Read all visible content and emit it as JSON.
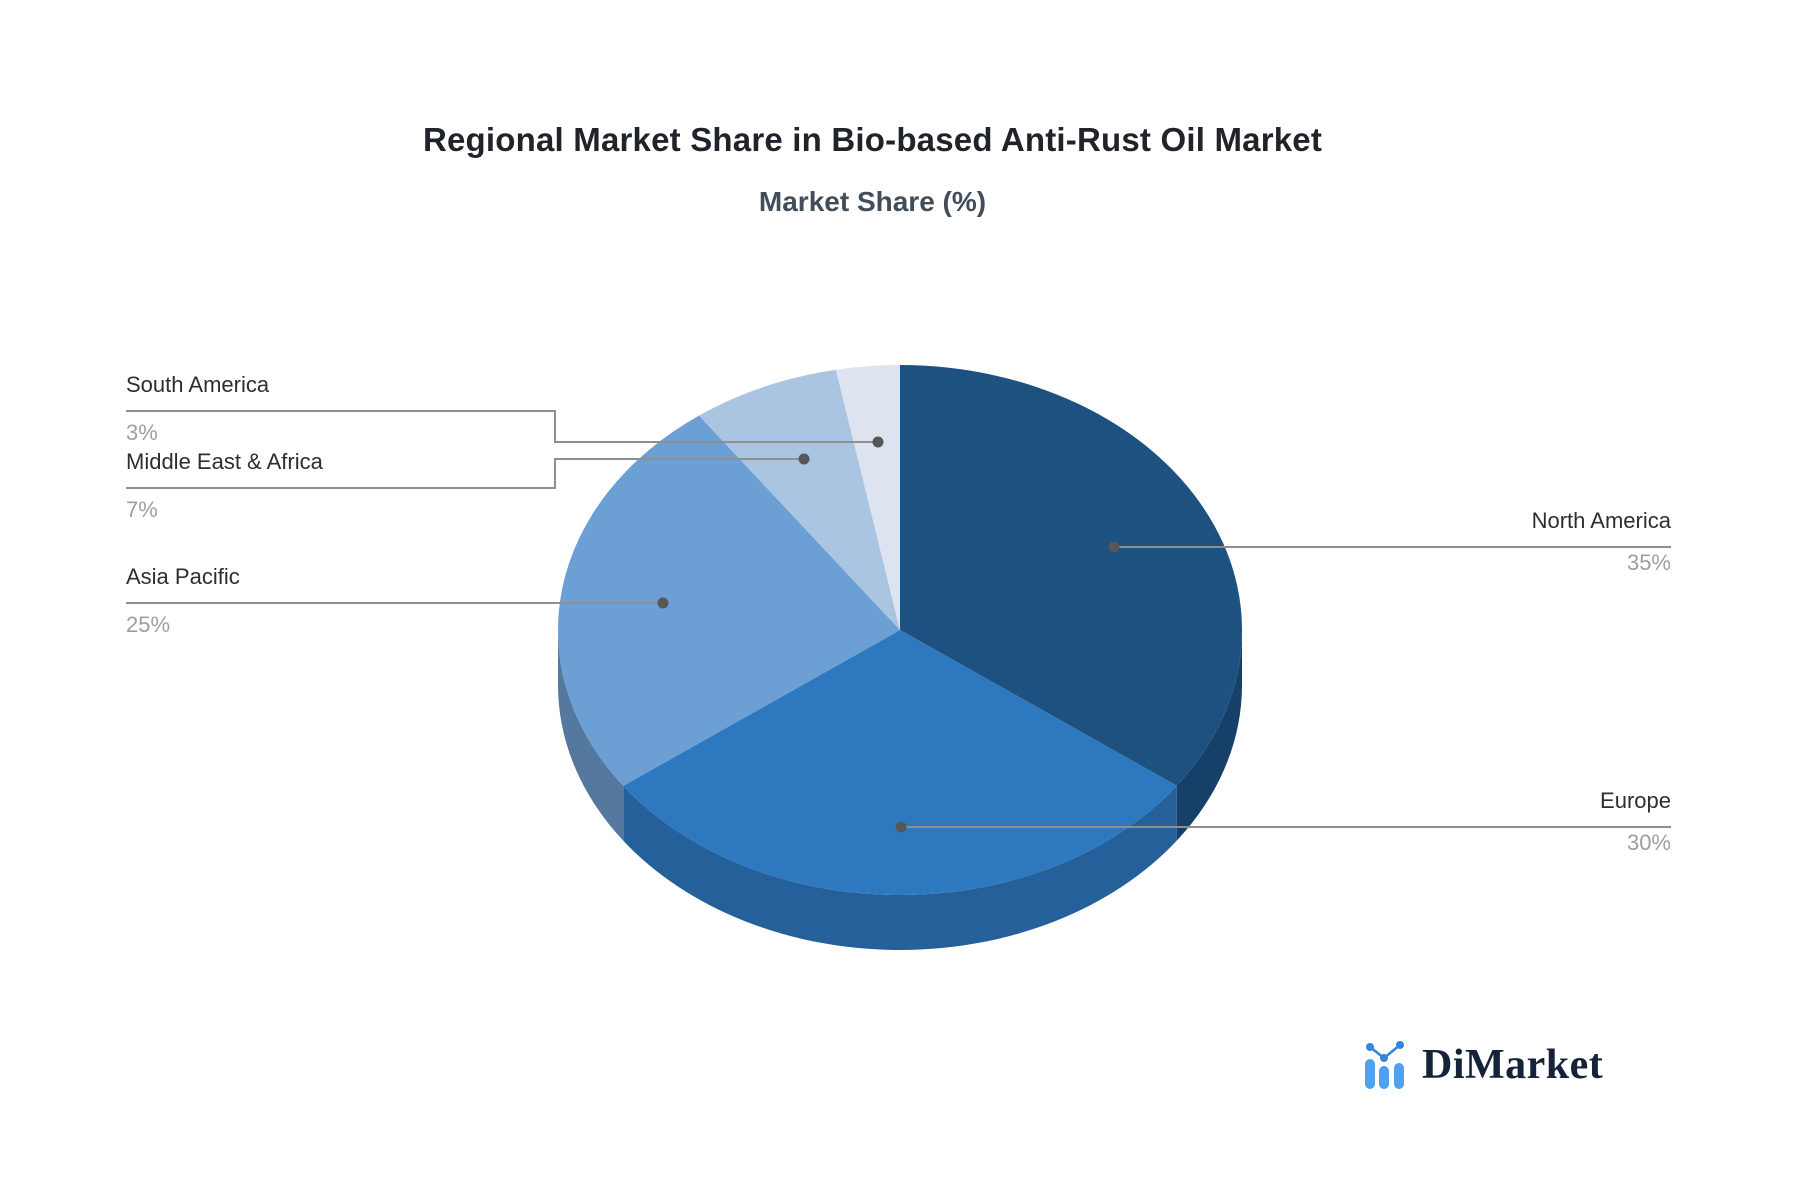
{
  "header": {
    "title": "Regional Market Share in Bio-based Anti-Rust Oil Market",
    "subtitle": "Market Share (%)"
  },
  "chart_data": {
    "type": "pie",
    "style": "3d",
    "title": "Regional Market Share in Bio-based Anti-Rust Oil Market",
    "subtitle": "Market Share (%)",
    "unit": "%",
    "direction": "clockwise",
    "start_angle": "12-o-clock",
    "legend_position": "callout-labels",
    "regions": [
      {
        "name": "North America",
        "value": 35,
        "value_label": "35%",
        "color": "#1c5180",
        "rim_color": "#16406a",
        "label_side": "right"
      },
      {
        "name": "Europe",
        "value": 30,
        "value_label": "30%",
        "color": "#2e78bf",
        "rim_color": "#26609b",
        "label_side": "right"
      },
      {
        "name": "Asia Pacific",
        "value": 25,
        "value_label": "25%",
        "color": "#6c9fd3",
        "rim_color": "#55789f",
        "label_side": "left"
      },
      {
        "name": "Middle East & Africa",
        "value": 7,
        "value_label": "7%",
        "color": "#a9c5e2",
        "rim_color": "#87a5c6",
        "label_side": "left"
      },
      {
        "name": "South America",
        "value": 3,
        "value_label": "3%",
        "color": "#dde4ef",
        "rim_color": "#b5c1d4",
        "label_side": "left"
      }
    ]
  },
  "branding": {
    "logo_text": "DiMarket",
    "logo_icon": "bar-line-chart-icon"
  },
  "colors": {
    "background": "#ffffff",
    "title": "#20242a",
    "subtitle": "#424d5a",
    "leader_line": "#8f8f8f",
    "dot": "#575757",
    "label_text": "#2e2e2e",
    "value_text": "#9e9e9e",
    "logo_text": "#152238",
    "logo_bar": "#4ea2f2",
    "logo_accent": "#3584dd"
  }
}
